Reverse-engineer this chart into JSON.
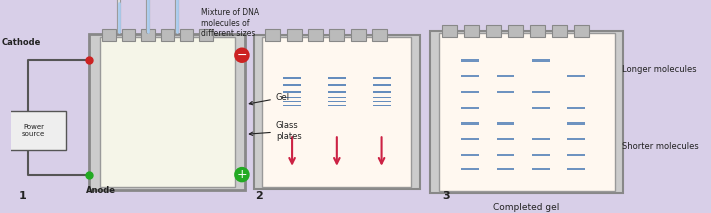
{
  "bg_color": "#d8cfe8",
  "band_color": "#4a7ab5",
  "arrow_color": "#cc2244",
  "notch_color": "#aaaaaa",
  "label_color": "#222222",
  "wire_color": "#555555",
  "gel_color1": "#f5f5e8",
  "gel_color2": "#fff8f0",
  "frame_color": "#cccccc",
  "border_color": "#888888",
  "cathode_label": "Cathode",
  "anode_label": "Anode",
  "power_label": "Power\nsource",
  "gel_label": "Gel",
  "glass_label": "Glass\nplates",
  "dna_label": "Mixture of DNA\nmolecules of\ndifferent sizes",
  "longer_label": "Longer molecules",
  "shorter_label": "Shorter molecules",
  "completed_label": "Completed gel",
  "label1": "1",
  "label2": "2",
  "label3": "3"
}
